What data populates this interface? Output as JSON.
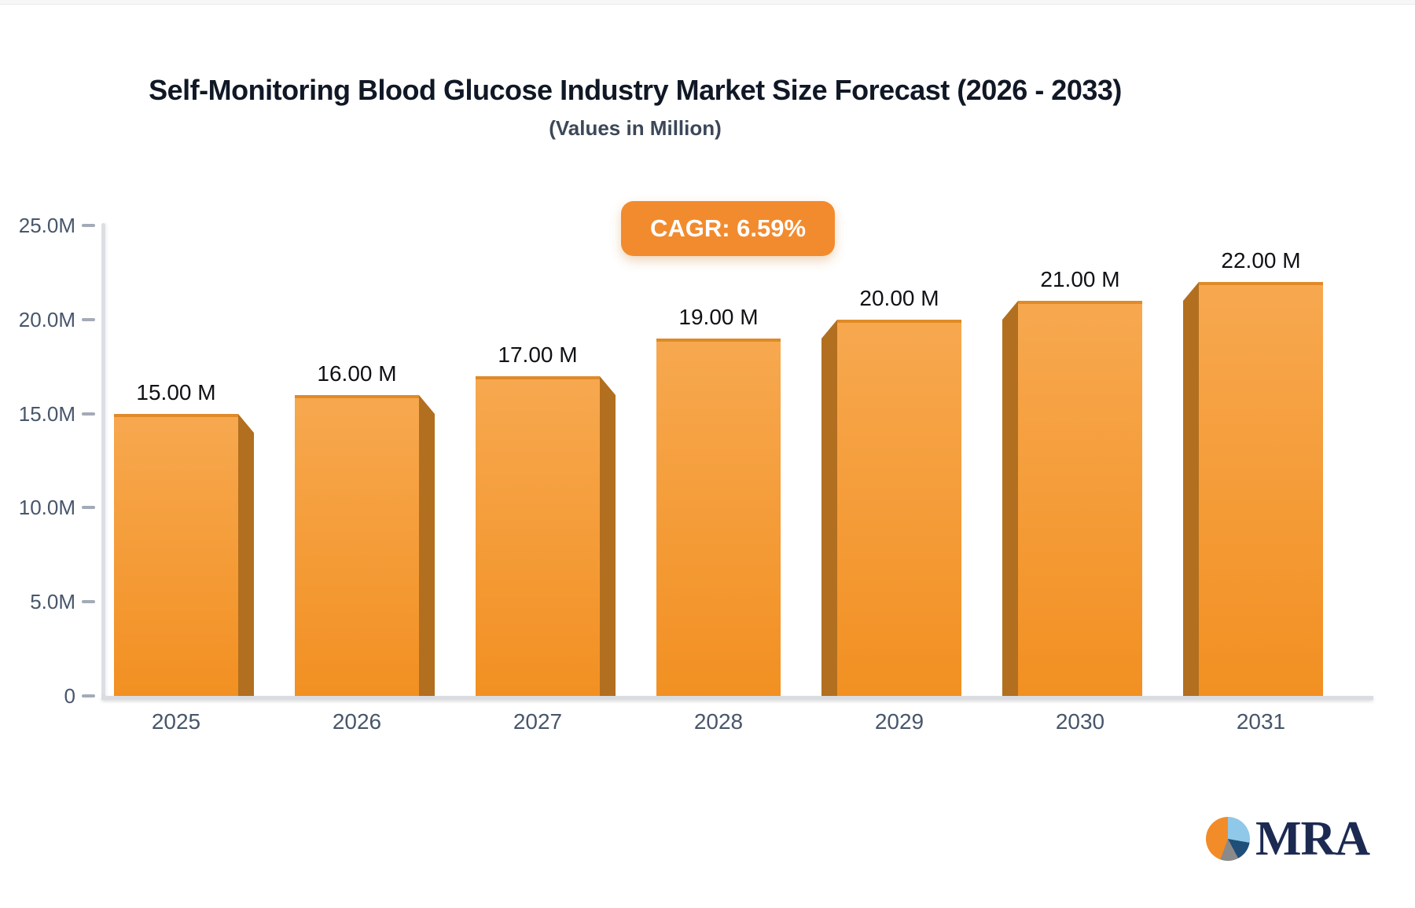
{
  "chart_data": {
    "type": "bar",
    "title": "Self-Monitoring Blood Glucose Industry Market Size Forecast (2026 - 2033)",
    "subtitle": "(Values in Million)",
    "badge_label": "CAGR: 6.59%",
    "categories": [
      "2025",
      "2026",
      "2027",
      "2028",
      "2029",
      "2030",
      "2031"
    ],
    "values": [
      15,
      16,
      17,
      19,
      20,
      21,
      22
    ],
    "bar_labels": [
      "15.00 M",
      "16.00 M",
      "17.00 M",
      "19.00 M",
      "20.00 M",
      "21.00 M",
      "22.00 M"
    ],
    "unit": "Million",
    "xlabel": "",
    "ylabel": "",
    "y_tick_values": [
      25,
      20,
      15,
      10,
      5,
      0
    ],
    "y_tick_labels": [
      "25.0M",
      "20.0M",
      "15.0M",
      "10.0M",
      "5.0M",
      "0"
    ],
    "ylim": [
      0,
      25
    ],
    "grid": false,
    "legend_position": "none",
    "style": "3d-perspective-bars",
    "colors": {
      "bar_face_top": "#f7a84f",
      "bar_face_bottom": "#f29022",
      "bar_face_top_edge": "#e08a28",
      "bar_side": "#b26f1f",
      "badge_bg": "#f28b2e",
      "badge_text": "#ffffff",
      "axis_line": "#d9dce0",
      "tick_label": "#47566b",
      "value_label": "#0f1115",
      "title": "#101826",
      "subtitle": "#3c4858"
    }
  },
  "logo": {
    "text": "MRA",
    "colors": {
      "navy": "#1c2a52",
      "pie_orange": "#f28c28",
      "pie_light_blue": "#8fc8e8",
      "pie_dark_blue": "#1f4e79",
      "pie_gray": "#8a8a8a"
    }
  }
}
